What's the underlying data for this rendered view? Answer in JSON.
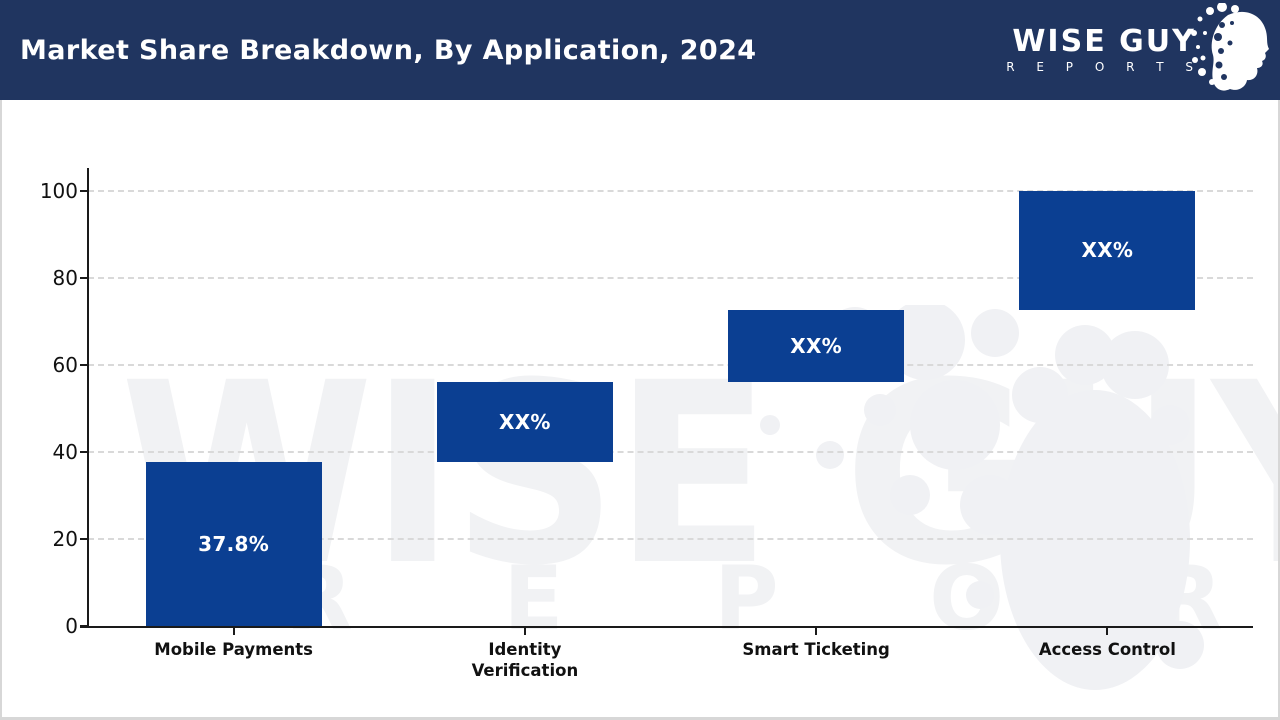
{
  "header": {
    "title": "Market Share Breakdown, By Application, 2024",
    "bg_color": "#203560",
    "logo": {
      "line1": "WISE GUY",
      "line2": "R E P O R T S"
    }
  },
  "watermark": {
    "line1": "WISE GUY",
    "line2": "R E P O R T S"
  },
  "chart_data": {
    "type": "bar",
    "subtype": "floating-waterfall",
    "title": "Market Share Breakdown, By Application, 2024",
    "categories": [
      "Mobile Payments",
      "Identity Verification",
      "Smart Ticketing",
      "Access Control"
    ],
    "segments": [
      {
        "category": "Mobile Payments",
        "start": 0,
        "end": 37.8,
        "label": "37.8%"
      },
      {
        "category": "Identity Verification",
        "start": 37.8,
        "end": 56.2,
        "label": "XX%"
      },
      {
        "category": "Smart Ticketing",
        "start": 56.2,
        "end": 72.7,
        "label": "XX%"
      },
      {
        "category": "Access Control",
        "start": 72.7,
        "end": 100,
        "label": "XX%"
      }
    ],
    "ylim": [
      0,
      100
    ],
    "yticks": [
      0,
      20,
      40,
      60,
      80,
      100
    ],
    "grid": "dashed-horizontal",
    "legend": "none",
    "bar_color": "#0b3f92",
    "bar_label_color": "#ffffff"
  }
}
